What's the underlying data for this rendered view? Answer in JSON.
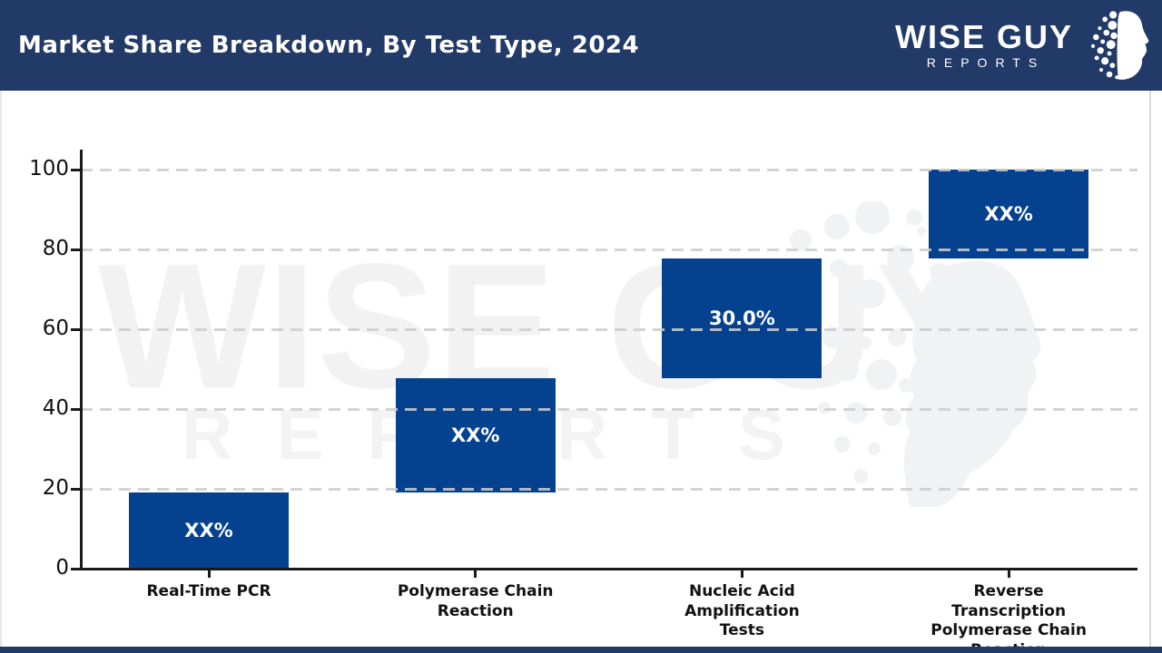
{
  "header": {
    "title": "Market Share Breakdown, By Test Type, 2024",
    "logo": {
      "line1": "WISE GUY",
      "line2": "REPORTS"
    }
  },
  "watermark": {
    "line1": "WISE GUY",
    "line2": "REPORTS"
  },
  "colors": {
    "header_bg": "#223a67",
    "bar": "#04418f",
    "bar_label": "#ffffff",
    "gridline": "#d5d5d8",
    "axis": "#1a1a1a",
    "watermark": "#f2f2f3"
  },
  "chart_data": {
    "type": "bar",
    "subtype": "waterfall",
    "title": "Market Share Breakdown, By Test Type, 2024",
    "categories": [
      "Real-Time PCR",
      "Polymerase Chain\nReaction",
      "Nucleic Acid\nAmplification\nTests",
      "Reverse\nTranscription\nPolymerase Chain\nReaction"
    ],
    "segments": [
      {
        "start": 0,
        "end": 19,
        "label": "XX%"
      },
      {
        "start": 19,
        "end": 47.7,
        "label": "XX%"
      },
      {
        "start": 47.7,
        "end": 77.7,
        "label": "30.0%"
      },
      {
        "start": 77.7,
        "end": 100,
        "label": "XX%"
      }
    ],
    "xlabel": "",
    "ylabel": "",
    "ylim": [
      0,
      100
    ],
    "yticks": [
      0,
      20,
      40,
      60,
      80,
      100
    ],
    "grid": "horizontal-dashed",
    "legend": "none"
  }
}
